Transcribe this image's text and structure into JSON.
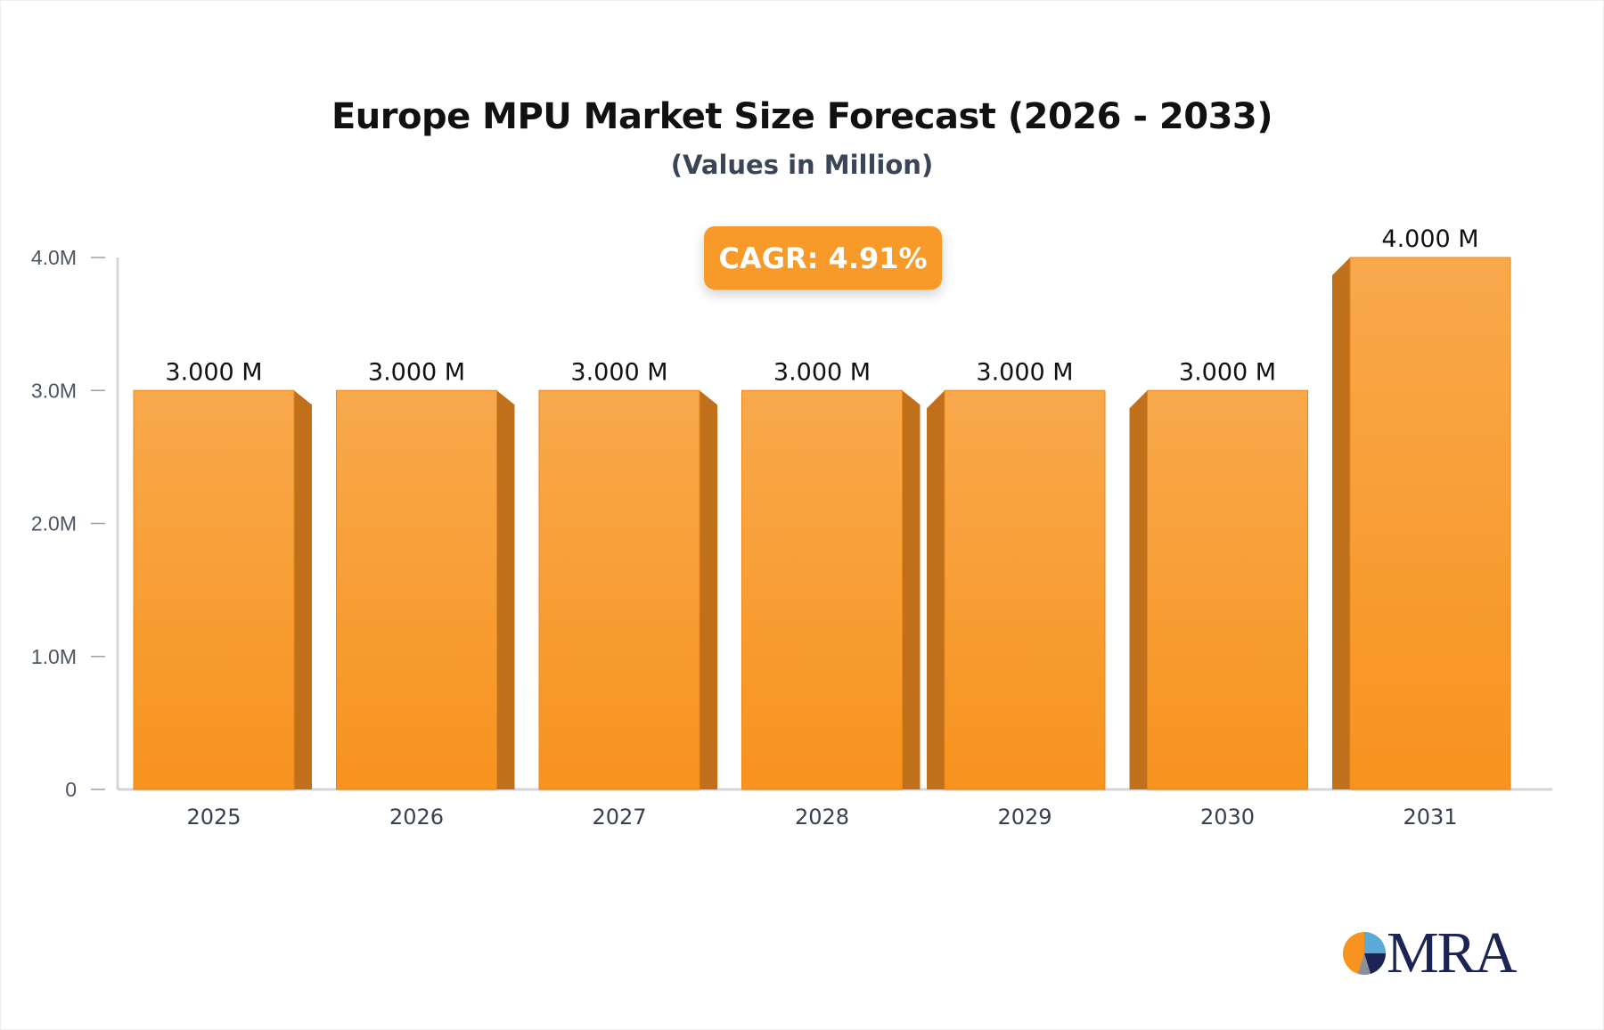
{
  "chart_data": {
    "type": "bar",
    "title": "Europe MPU Market Size Forecast (2026 - 2033)",
    "subtitle": "(Values in Million)",
    "annotation": "CAGR: 4.91%",
    "categories": [
      "2025",
      "2026",
      "2027",
      "2028",
      "2029",
      "2030",
      "2031"
    ],
    "values": [
      3.0,
      3.0,
      3.0,
      3.0,
      3.0,
      3.0,
      4.0
    ],
    "data_labels": [
      "3.000 M",
      "3.000 M",
      "3.000 M",
      "3.000 M",
      "3.000 M",
      "3.000 M",
      "4.000 M"
    ],
    "yticks": [
      0,
      1.0,
      2.0,
      3.0,
      4.0
    ],
    "ytick_labels": [
      "0",
      "1.0M",
      "2.0M",
      "3.0M",
      "4.0M"
    ],
    "ylim": [
      0,
      4.0
    ],
    "xlabel": "",
    "ylabel": "",
    "grid": false,
    "colors": {
      "bar_top": "#f8a94c",
      "bar_bottom": "#f7931e",
      "bar_side": "#c0701a",
      "axis": "#d4d6dc"
    }
  },
  "logo": {
    "text": "MRA"
  }
}
